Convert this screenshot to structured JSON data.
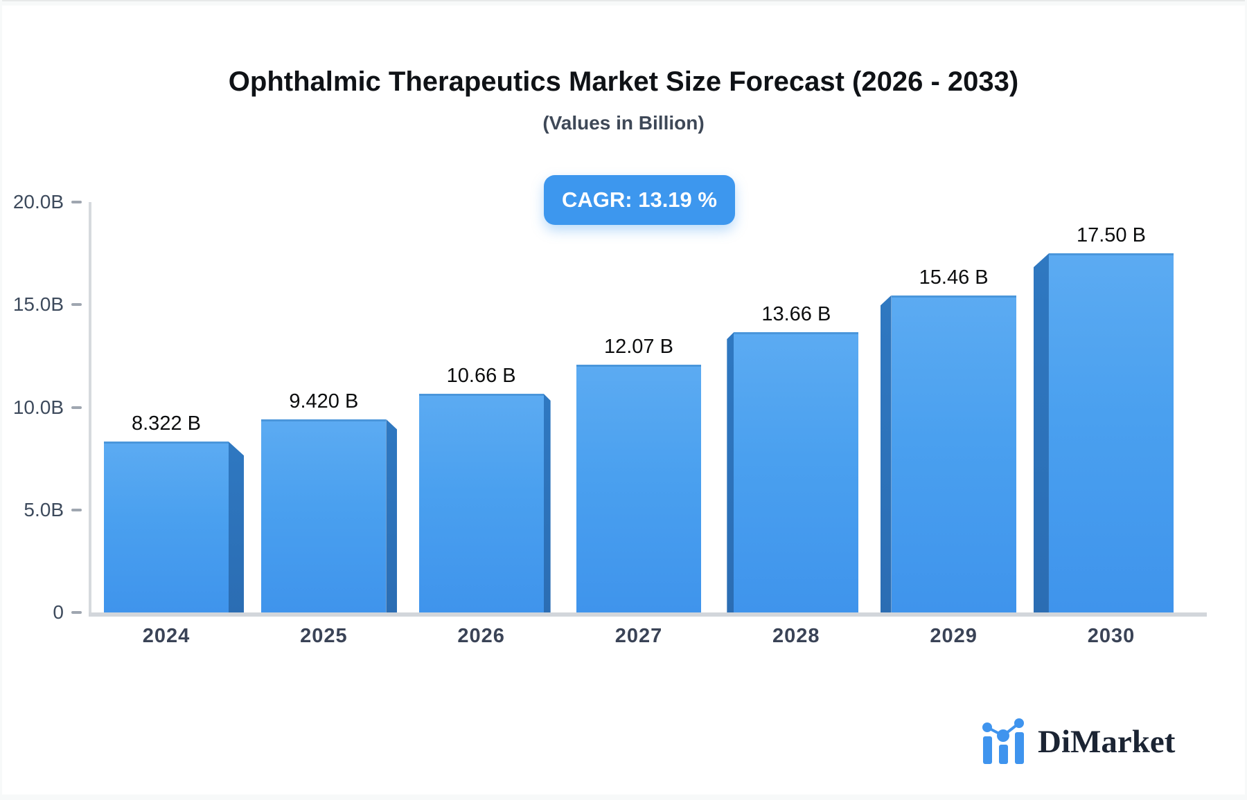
{
  "header": {
    "title": "Ophthalmic Therapeutics Market Size Forecast (2026 - 2033)",
    "subtitle": "(Values in Billion)",
    "cagr_badge": "CAGR: 13.19 %"
  },
  "chart_data": {
    "type": "bar",
    "title": "Ophthalmic Therapeutics Market Size Forecast (2026 - 2033)",
    "subtitle": "(Values in Billion)",
    "categories": [
      "2024",
      "2025",
      "2026",
      "2027",
      "2028",
      "2029",
      "2030"
    ],
    "values": [
      8.322,
      9.42,
      10.66,
      12.07,
      13.66,
      15.46,
      17.5
    ],
    "value_labels": [
      "8.322 B",
      "9.420 B",
      "10.66 B",
      "12.07 B",
      "13.66 B",
      "15.46 B",
      "17.50 B"
    ],
    "xlabel": "",
    "ylabel": "",
    "ylim": [
      0,
      20
    ],
    "ytick_labels": [
      "20.0B",
      "15.0B",
      "10.0B",
      "5.0B",
      "0"
    ],
    "ytick_values": [
      20,
      15,
      10,
      5,
      0
    ],
    "grid": false,
    "legend": false,
    "annotation": "CAGR: 13.19 %"
  },
  "colors": {
    "bar_face_top": "#5cabf2",
    "bar_face_bottom": "#3f94ec",
    "bar_side": "#2d72b8",
    "badge_bg": "#3d97ee",
    "badge_text": "#ffffff",
    "axis": "#d6dade",
    "tick_text": "#3d4a5c",
    "title_text": "#0f1216",
    "logo_blue": "#3f94ee",
    "logo_navy": "#1b2433"
  },
  "brand": {
    "logo_text": "DiMarket"
  }
}
